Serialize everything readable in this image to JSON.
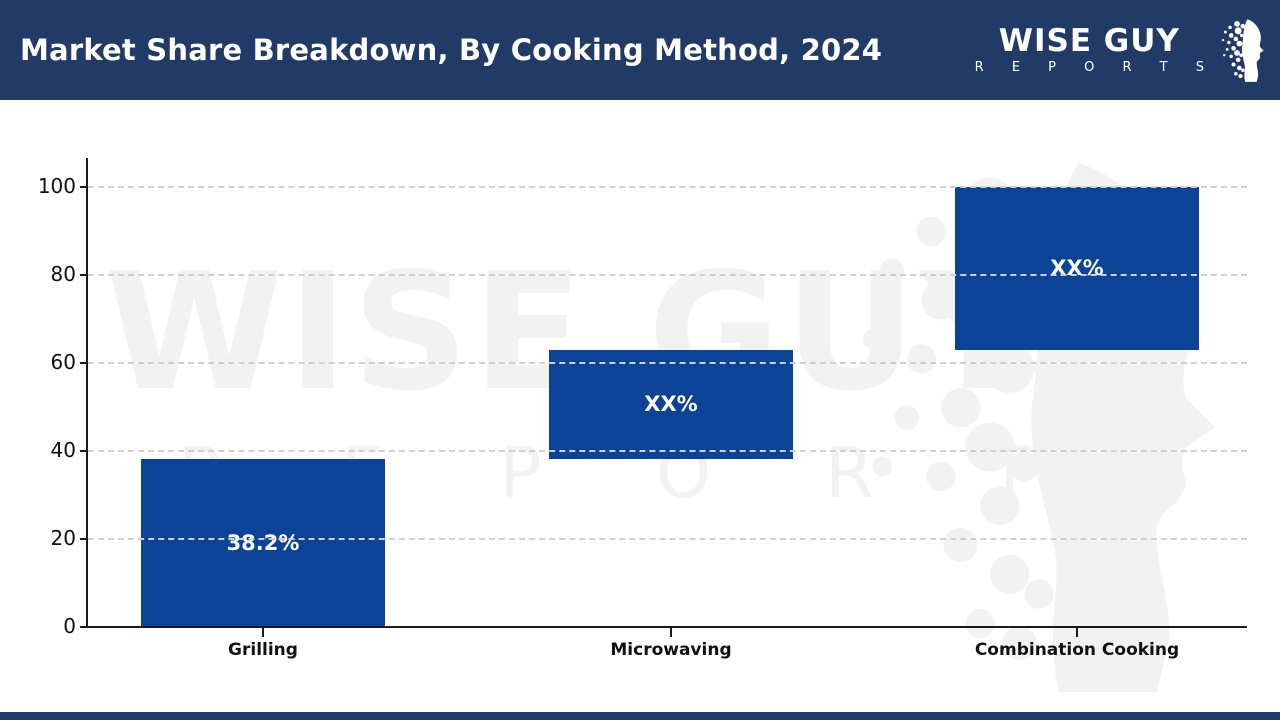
{
  "header": {
    "title": "Market Share Breakdown, By Cooking Method, 2024",
    "logo": {
      "name": "WISE GUY",
      "sub": "R E P O R T S"
    }
  },
  "watermark": {
    "name": "WISE GUY",
    "sub": "R E P O R T S"
  },
  "colors": {
    "header_bg": "#213A66",
    "footer_bg": "#213A66",
    "bar_fill": "#0B4397",
    "bar_label_color": "#FFFFFF",
    "grid_line": "#CFCFCF",
    "axis_line": "#1A1A1A",
    "watermark_color": "#F2F2F2"
  },
  "chart_data": {
    "type": "bar",
    "subtype": "waterfall",
    "title": "Market Share Breakdown, By Cooking Method, 2024",
    "xlabel": "",
    "ylabel": "",
    "ylim": [
      0,
      100
    ],
    "yticks": [
      0,
      20,
      40,
      60,
      80,
      100
    ],
    "grid": "horizontal-dashed",
    "legend": "none",
    "categories": [
      "Grilling",
      "Microwaving",
      "Combination Cooking"
    ],
    "segments": [
      {
        "category": "Grilling",
        "start": 0,
        "end": 38.2,
        "label": "38.2%"
      },
      {
        "category": "Microwaving",
        "start": 38.2,
        "end": 63,
        "label": "XX%"
      },
      {
        "category": "Combination Cooking",
        "start": 63,
        "end": 100,
        "label": "XX%"
      }
    ]
  }
}
